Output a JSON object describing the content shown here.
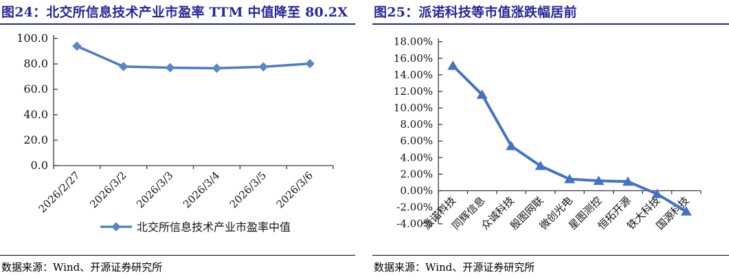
{
  "fig24": {
    "title": "图24：北交所信息技术产业市盈率 TTM 中值降至 80.2X",
    "source": "数据来源：Wind、开源证券研究所"
  },
  "fig25": {
    "title": "图25：派诺科技等市值涨跌幅居前",
    "source": "数据来源：Wind、开源证券研究所"
  },
  "colors": {
    "title_navy": "#26269B",
    "fig24_line": "#4A7CBE",
    "fig24_marker": "#5C85C6",
    "fig25_line": "#4472C4",
    "axis_gray": "#3A3A3A"
  },
  "chart_data": [
    {
      "type": "line",
      "title": "图24：北交所信息技术产业市盈率 TTM 中值降至 80.2X",
      "categories": [
        "2026/2/27",
        "2026/3/2",
        "2026/3/3",
        "2026/3/4",
        "2026/3/5",
        "2026/3/6"
      ],
      "series": [
        {
          "name": "北交所信息技术产业市盈率中值",
          "values": [
            94.0,
            77.9,
            77.0,
            76.6,
            77.7,
            80.2
          ]
        }
      ],
      "xlabel": "",
      "ylabel": "",
      "ylim": [
        0,
        100
      ],
      "ytick_step": 20,
      "ytick_labels": [
        "100.0",
        "80.0",
        "60.0",
        "40.0",
        "20.0",
        "0.0"
      ],
      "baseline": 0,
      "grid": false,
      "marker": "diamond",
      "legend_position": "bottom",
      "line_color": "#4A7CBE",
      "marker_color": "#5C85C6"
    },
    {
      "type": "line",
      "title": "图25：派诺科技等市值涨跌幅居前",
      "categories": [
        "派诺科技",
        "同辉信息",
        "众诚科技",
        "殷图网联",
        "微创光电",
        "星图测控",
        "恒拓开源",
        "铁大科技",
        "国源科技"
      ],
      "series": [
        {
          "name": "市值涨跌幅",
          "values": [
            15.1,
            11.6,
            5.4,
            3.0,
            1.4,
            1.2,
            1.1,
            -0.4,
            -2.5
          ]
        }
      ],
      "xlabel": "",
      "ylabel": "",
      "unit": "%",
      "ylim": [
        -4,
        18
      ],
      "ytick_step": 2,
      "ytick_labels": [
        "18.00%",
        "16.00%",
        "14.00%",
        "12.00%",
        "10.00%",
        "8.00%",
        "6.00%",
        "4.00%",
        "2.00%",
        "0.00%",
        "-2.00%",
        "-4.00%"
      ],
      "baseline": 0,
      "grid": false,
      "marker": "triangle",
      "legend_position": "none",
      "line_color": "#4472C4",
      "marker_color": "#4472C4"
    }
  ]
}
